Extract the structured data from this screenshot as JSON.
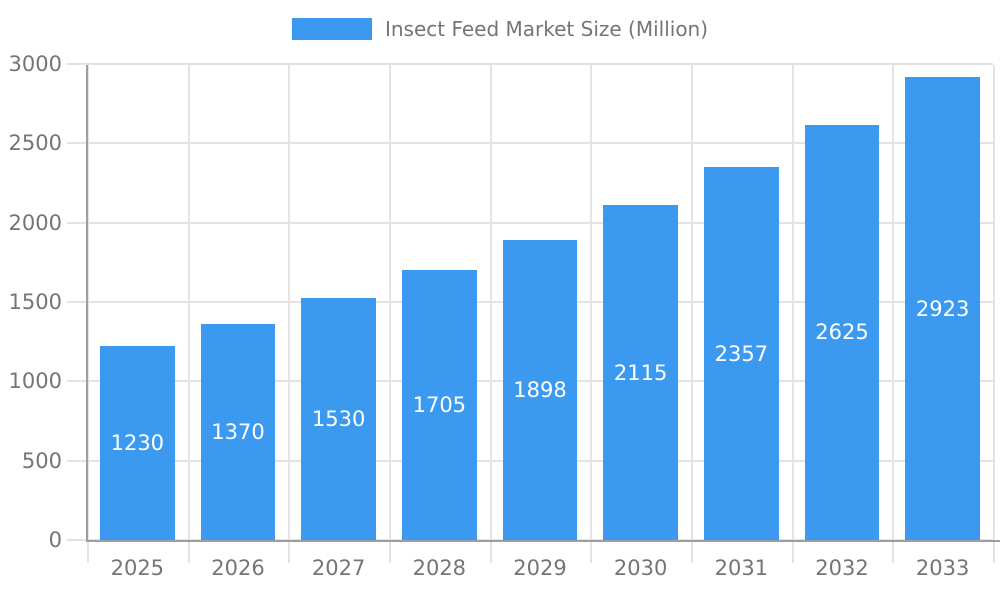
{
  "chart_data": {
    "type": "bar",
    "title": "Insect Feed Market Size (Million)",
    "legend": {
      "position": "top-center",
      "entries": [
        "Insect Feed Market Size (Million)"
      ]
    },
    "categories": [
      "2025",
      "2026",
      "2027",
      "2028",
      "2029",
      "2030",
      "2031",
      "2032",
      "2033"
    ],
    "series": [
      {
        "name": "Insect Feed Market Size (Million)",
        "values": [
          1230,
          1370,
          1530,
          1705,
          1898,
          2115,
          2357,
          2625,
          2923
        ]
      }
    ],
    "value_labels_shown": true,
    "xlabel": "",
    "ylabel": "",
    "ylim": [
      0,
      3000
    ],
    "yticks": [
      0,
      500,
      1000,
      1500,
      2000,
      2500,
      3000
    ],
    "grid": true,
    "colors": {
      "bar": "#3b9af0",
      "value_label": "#ffffff",
      "axis_label": "#757575",
      "axis_line": "#9e9e9e",
      "gridline": "#e3e3e3",
      "background": "#ffffff"
    }
  }
}
